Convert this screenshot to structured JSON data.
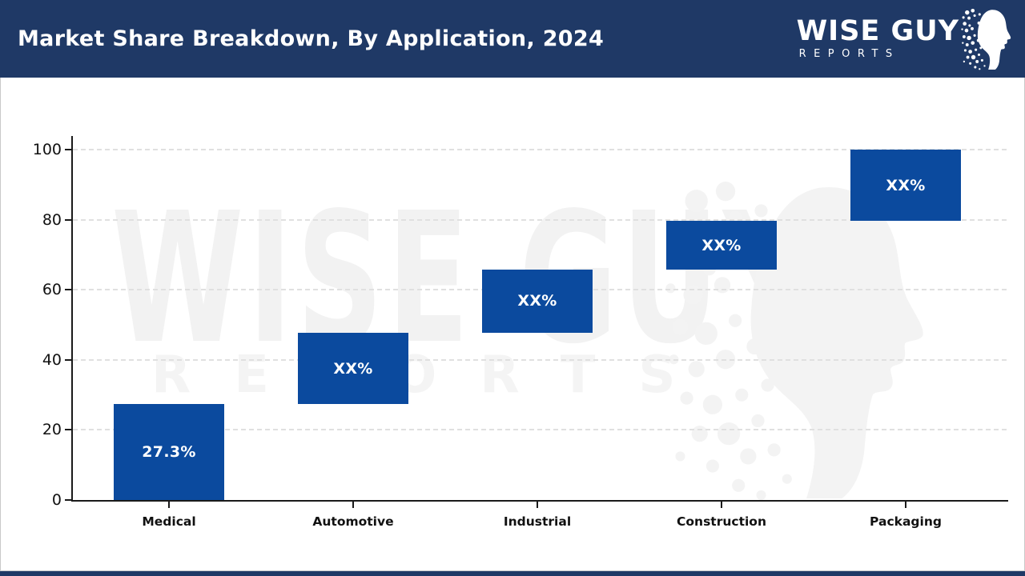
{
  "header": {
    "title": "Market Share Breakdown, By Application, 2024",
    "bg_color": "#1f3966",
    "logo": {
      "line1": "WISE GUY",
      "line2": "REPORTS"
    }
  },
  "watermark": {
    "line1": "WISE GUY",
    "line2": "REPORTS"
  },
  "footer": {
    "bg_color": "#1f3966"
  },
  "chart_data": {
    "type": "bar",
    "subtype": "waterfall-floating-bars",
    "title": "Market Share Breakdown, By Application, 2024",
    "categories": [
      "Medical",
      "Automotive",
      "Industrial",
      "Construction",
      "Packaging"
    ],
    "series": [
      {
        "name": "Market Share %",
        "segments": [
          {
            "category": "Medical",
            "start": 0,
            "end": 27.3,
            "label": "27.3%"
          },
          {
            "category": "Automotive",
            "start": 27.3,
            "end": 47.8,
            "label": "XX%"
          },
          {
            "category": "Industrial",
            "start": 47.8,
            "end": 65.8,
            "label": "XX%"
          },
          {
            "category": "Construction",
            "start": 65.8,
            "end": 79.6,
            "label": "XX%"
          },
          {
            "category": "Packaging",
            "start": 79.6,
            "end": 100,
            "label": "XX%"
          }
        ]
      }
    ],
    "xlabel": "",
    "ylabel": "",
    "ylim": [
      0,
      100
    ],
    "yticks": [
      0,
      20,
      40,
      60,
      80,
      100
    ],
    "grid": "horizontal dashed",
    "legend": "none",
    "bar_color": "#0b4a9e",
    "bar_label_color": "#ffffff",
    "axis_color": "#1a1a1a",
    "gridline_color": "#e0e0e0"
  }
}
